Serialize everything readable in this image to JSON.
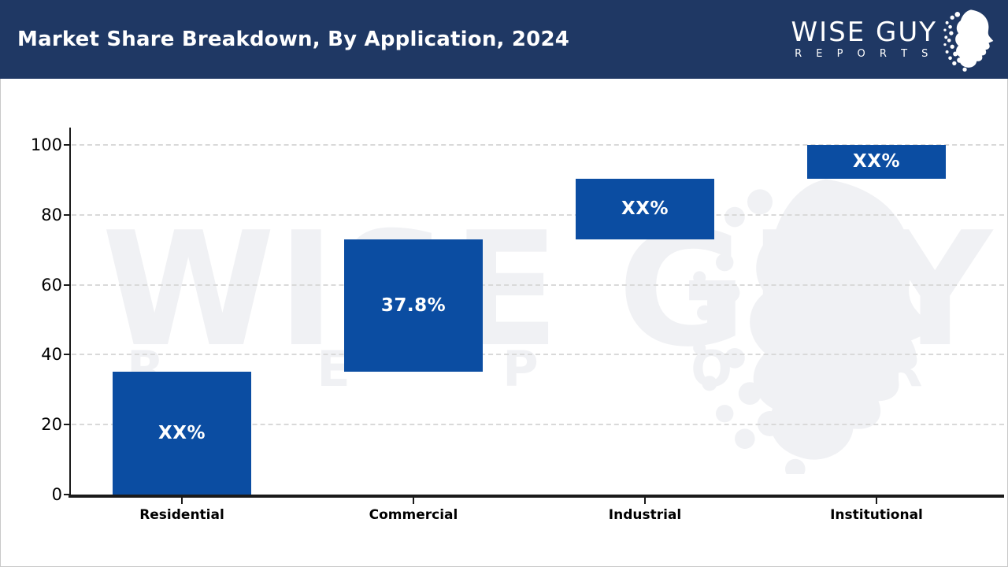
{
  "header": {
    "title": "Market Share Breakdown, By Application, 2024",
    "bg_color": "#1f3864",
    "text_color": "#ffffff",
    "logo": {
      "line1": "WISE GUY",
      "line2": "R E P O R T S"
    }
  },
  "watermark": {
    "line1": "WISE GUY",
    "line2": "R E P O R T S",
    "color": "#f0f1f4"
  },
  "chart_data": {
    "type": "bar",
    "variant": "floating-breakdown",
    "title": "Market Share Breakdown, By Application, 2024",
    "categories": [
      "Residential",
      "Commercial",
      "Industrial",
      "Institutional"
    ],
    "segments": [
      {
        "category": "Residential",
        "from": 0,
        "to": 35.2,
        "label": "XX%"
      },
      {
        "category": "Commercial",
        "from": 35.2,
        "to": 73.0,
        "label": "37.8%"
      },
      {
        "category": "Industrial",
        "from": 73.0,
        "to": 90.4,
        "label": "XX%"
      },
      {
        "category": "Institutional",
        "from": 90.4,
        "to": 100,
        "label": "XX%"
      }
    ],
    "ytick_labels": [
      "0",
      "20",
      "40",
      "60",
      "80",
      "100"
    ],
    "yticks": [
      0,
      20,
      40,
      60,
      80,
      100
    ],
    "ylim": [
      0,
      105
    ],
    "xlabel": "",
    "ylabel": "",
    "grid": "horizontal-dashed",
    "legend": "none",
    "bar_color": "#0b4da2",
    "bar_label_color": "#ffffff",
    "grid_color": "#d9d9d9",
    "axis_color": "#1a1a1a",
    "tick_label_color": "#000000"
  }
}
